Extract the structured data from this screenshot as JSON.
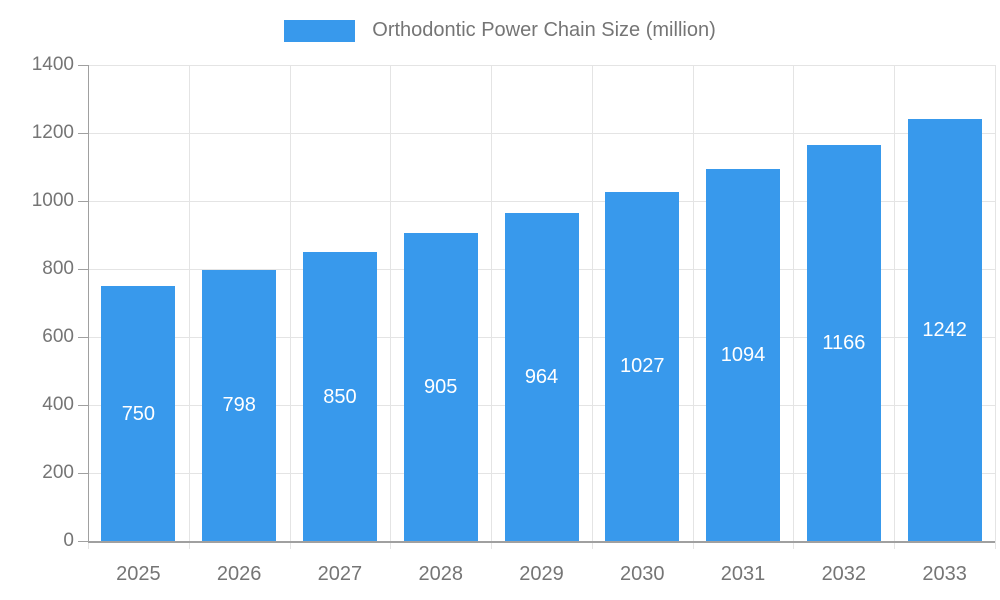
{
  "chart_data": {
    "type": "bar",
    "title": "Orthodontic Power Chain Size (million)",
    "legend_label": "Orthodontic Power Chain Size (million)",
    "categories": [
      "2025",
      "2026",
      "2027",
      "2028",
      "2029",
      "2030",
      "2031",
      "2032",
      "2033"
    ],
    "values": [
      750,
      798,
      850,
      905,
      964,
      1027,
      1094,
      1166,
      1242
    ],
    "series": [
      {
        "name": "Orthodontic Power Chain Size (million)",
        "values": [
          750,
          798,
          850,
          905,
          964,
          1027,
          1094,
          1166,
          1242
        ]
      }
    ],
    "xlabel": "",
    "ylabel": "",
    "ylim": [
      0,
      1400
    ],
    "yticks": [
      0,
      200,
      400,
      600,
      800,
      1000,
      1200,
      1400
    ],
    "grid": true,
    "legend_position": "top",
    "bar_value_labels_inside": true,
    "colors": {
      "bar": "#3899EC",
      "bar_label": "#FFFFFF",
      "grid": "#E4E4E4",
      "axis": "#A0A0A0",
      "tick_label": "#757575",
      "legend_text": "#757575",
      "background": "#FFFFFF"
    }
  }
}
